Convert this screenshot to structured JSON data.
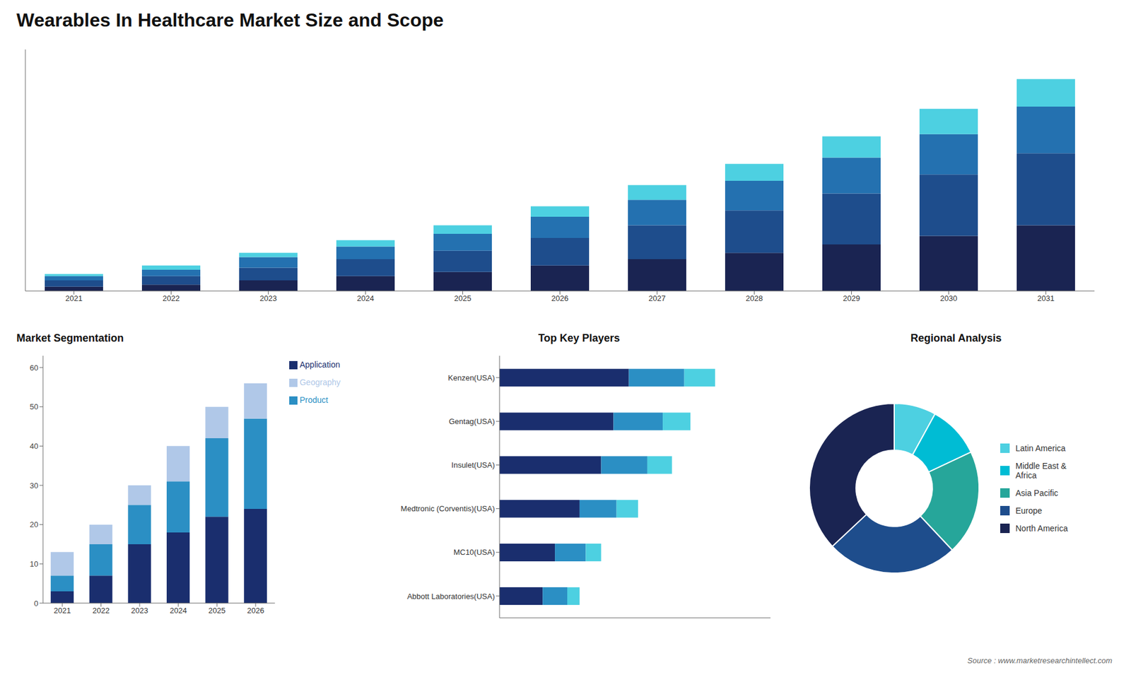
{
  "title": "Wearables In Healthcare Market Size and Scope",
  "annotations": [
    "Source : www.marketresearchintellect.com"
  ],
  "chart_data": [
    {
      "type": "bar",
      "stacked": true,
      "categories": [
        "2021",
        "2022",
        "2023",
        "2024",
        "2025",
        "2026",
        "2027",
        "2028",
        "2029",
        "2030",
        "2031"
      ],
      "series": [
        {
          "color": "#1a2452",
          "values": [
            2,
            3,
            5,
            7,
            9,
            12,
            15,
            18,
            22,
            26,
            31
          ]
        },
        {
          "color": "#1e4d8c",
          "values": [
            3,
            4,
            6,
            8,
            10,
            13,
            16,
            20,
            24,
            29,
            34
          ]
        },
        {
          "color": "#2471b0",
          "values": [
            2,
            3,
            5,
            6,
            8,
            10,
            12,
            14,
            17,
            19,
            22
          ]
        },
        {
          "color": "#4dd0e1",
          "values": [
            1,
            2,
            2,
            3,
            4,
            5,
            7,
            8,
            10,
            12,
            13
          ]
        }
      ],
      "ylim": [
        0,
        114
      ],
      "tick_labels": "x"
    },
    {
      "type": "bar",
      "title": "Market Segmentation",
      "stacked": true,
      "categories": [
        "2021",
        "2022",
        "2023",
        "2024",
        "2025",
        "2026"
      ],
      "series": [
        {
          "name": "Application",
          "color": "#1a2e6e",
          "values": [
            3,
            7,
            15,
            18,
            22,
            24
          ]
        },
        {
          "name": "Product",
          "color": "#2b8fc4",
          "values": [
            4,
            8,
            10,
            13,
            20,
            23
          ]
        },
        {
          "name": "Geography",
          "color": "#b0c8e8",
          "values": [
            6,
            5,
            5,
            9,
            8,
            9
          ]
        }
      ],
      "ylim": [
        0,
        63
      ],
      "yticks": [
        0,
        10,
        20,
        30,
        40,
        50,
        60
      ],
      "legend": "right"
    },
    {
      "type": "bar",
      "title": "Top Key Players",
      "orientation": "horizontal",
      "stacked": true,
      "categories": [
        "Kenzen(USA)",
        "Gentag(USA)",
        "Insulet(USA)",
        "Medtronic (Corventis)(USA)",
        "MC10(USA)",
        "Abbott Laboratories(USA)"
      ],
      "series": [
        {
          "color": "#1a2e6e",
          "values": [
            42,
            37,
            33,
            26,
            18,
            14
          ]
        },
        {
          "color": "#2b8fc4",
          "values": [
            18,
            16,
            15,
            12,
            10,
            8
          ]
        },
        {
          "color": "#4dd0e1",
          "values": [
            10,
            9,
            8,
            7,
            5,
            4
          ]
        }
      ],
      "xlim": [
        0,
        88
      ],
      "tick_labels": "y"
    },
    {
      "type": "pie",
      "title": "Regional Analysis",
      "categories": [
        "Latin America",
        "Middle East &\nAfrica",
        "Asia Pacific",
        "Europe",
        "North America"
      ],
      "values": [
        8,
        10,
        20,
        25,
        37
      ],
      "colors": [
        "#4dd0e1",
        "#00bcd4",
        "#26a69a",
        "#1e4d8c",
        "#1a2452"
      ],
      "legend": "right"
    }
  ]
}
